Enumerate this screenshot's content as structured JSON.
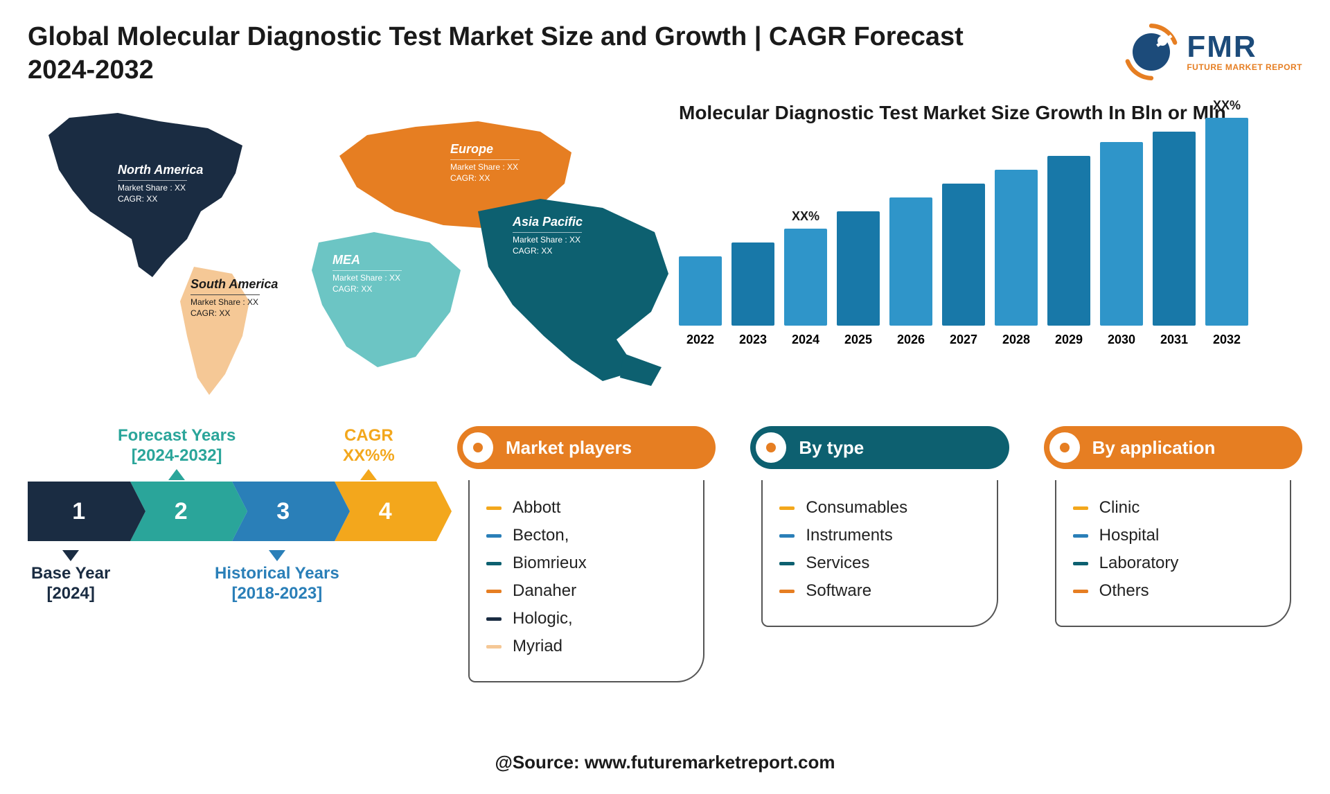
{
  "title": "Global Molecular Diagnostic Test Market Size and Growth | CAGR Forecast 2024-2032",
  "logo": {
    "fmr": "FMR",
    "sub": "FUTURE MARKET REPORT"
  },
  "colors": {
    "navy": "#1a2c42",
    "orange": "#e67e22",
    "teal": "#2aa59a",
    "teal_dark": "#0d6070",
    "light_teal": "#6cc5c4",
    "tan": "#f5c896",
    "blue_bar": "#2f95c9",
    "blue_bar2": "#1878a8",
    "yellow": "#f3a71c",
    "blue_mid": "#2a7fb8"
  },
  "regions": [
    {
      "name": "North America",
      "share": "Market Share : XX",
      "cagr": "CAGR: XX",
      "color": "#1a2c42"
    },
    {
      "name": "South America",
      "share": "Market Share : XX",
      "cagr": "CAGR: XX",
      "color": "#f5c896"
    },
    {
      "name": "Europe",
      "share": "Market Share : XX",
      "cagr": "CAGR: XX",
      "color": "#e67e22"
    },
    {
      "name": "MEA",
      "share": "Market Share : XX",
      "cagr": "CAGR: XX",
      "color": "#6cc5c4"
    },
    {
      "name": "Asia Pacific",
      "share": "Market Share : XX",
      "cagr": "CAGR: XX",
      "color": "#0d6070"
    }
  ],
  "chart": {
    "title": "Molecular Diagnostic Test Market Size Growth In Bln or Mln",
    "years": [
      "2022",
      "2023",
      "2024",
      "2025",
      "2026",
      "2027",
      "2028",
      "2029",
      "2030",
      "2031",
      "2032"
    ],
    "heights": [
      100,
      120,
      140,
      165,
      185,
      205,
      225,
      245,
      265,
      280,
      300
    ],
    "bar_colors": [
      "#2f95c9",
      "#1878a8",
      "#2f95c9",
      "#1878a8",
      "#2f95c9",
      "#1878a8",
      "#2f95c9",
      "#1878a8",
      "#2f95c9",
      "#1878a8",
      "#2f95c9"
    ],
    "callouts": {
      "2": "XX%",
      "10": "XX%"
    }
  },
  "timeline": {
    "forecast_label": "Forecast Years",
    "forecast_range": "[2024-2032]",
    "cagr_label": "CAGR",
    "cagr_value": "XX%%",
    "base_label": "Base Year",
    "base_range": "[2024]",
    "hist_label": "Historical Years",
    "hist_range": "[2018-2023]",
    "steps": [
      "1",
      "2",
      "3",
      "4"
    ],
    "step_colors": [
      "#1a2c42",
      "#2aa59a",
      "#2a7fb8",
      "#f3a71c"
    ]
  },
  "categories": [
    {
      "label": "Market players",
      "pill_color": "#e67e22",
      "items": [
        "Abbott",
        "Becton,",
        "Biomrieux",
        "Danaher",
        "Hologic,",
        "Myriad"
      ],
      "item_colors": [
        "#f3a71c",
        "#2a7fb8",
        "#0d6070",
        "#e67e22",
        "#1a2c42",
        "#f5c896"
      ]
    },
    {
      "label": "By type",
      "pill_color": "#0d6070",
      "items": [
        "Consumables",
        "Instruments",
        "Services",
        "Software"
      ],
      "item_colors": [
        "#f3a71c",
        "#2a7fb8",
        "#0d6070",
        "#e67e22"
      ]
    },
    {
      "label": "By application",
      "pill_color": "#e67e22",
      "items": [
        "Clinic",
        "Hospital",
        "Laboratory",
        "Others"
      ],
      "item_colors": [
        "#f3a71c",
        "#2a7fb8",
        "#0d6070",
        "#e67e22"
      ]
    }
  ],
  "source": "@Source: www.futuremarketreport.com"
}
